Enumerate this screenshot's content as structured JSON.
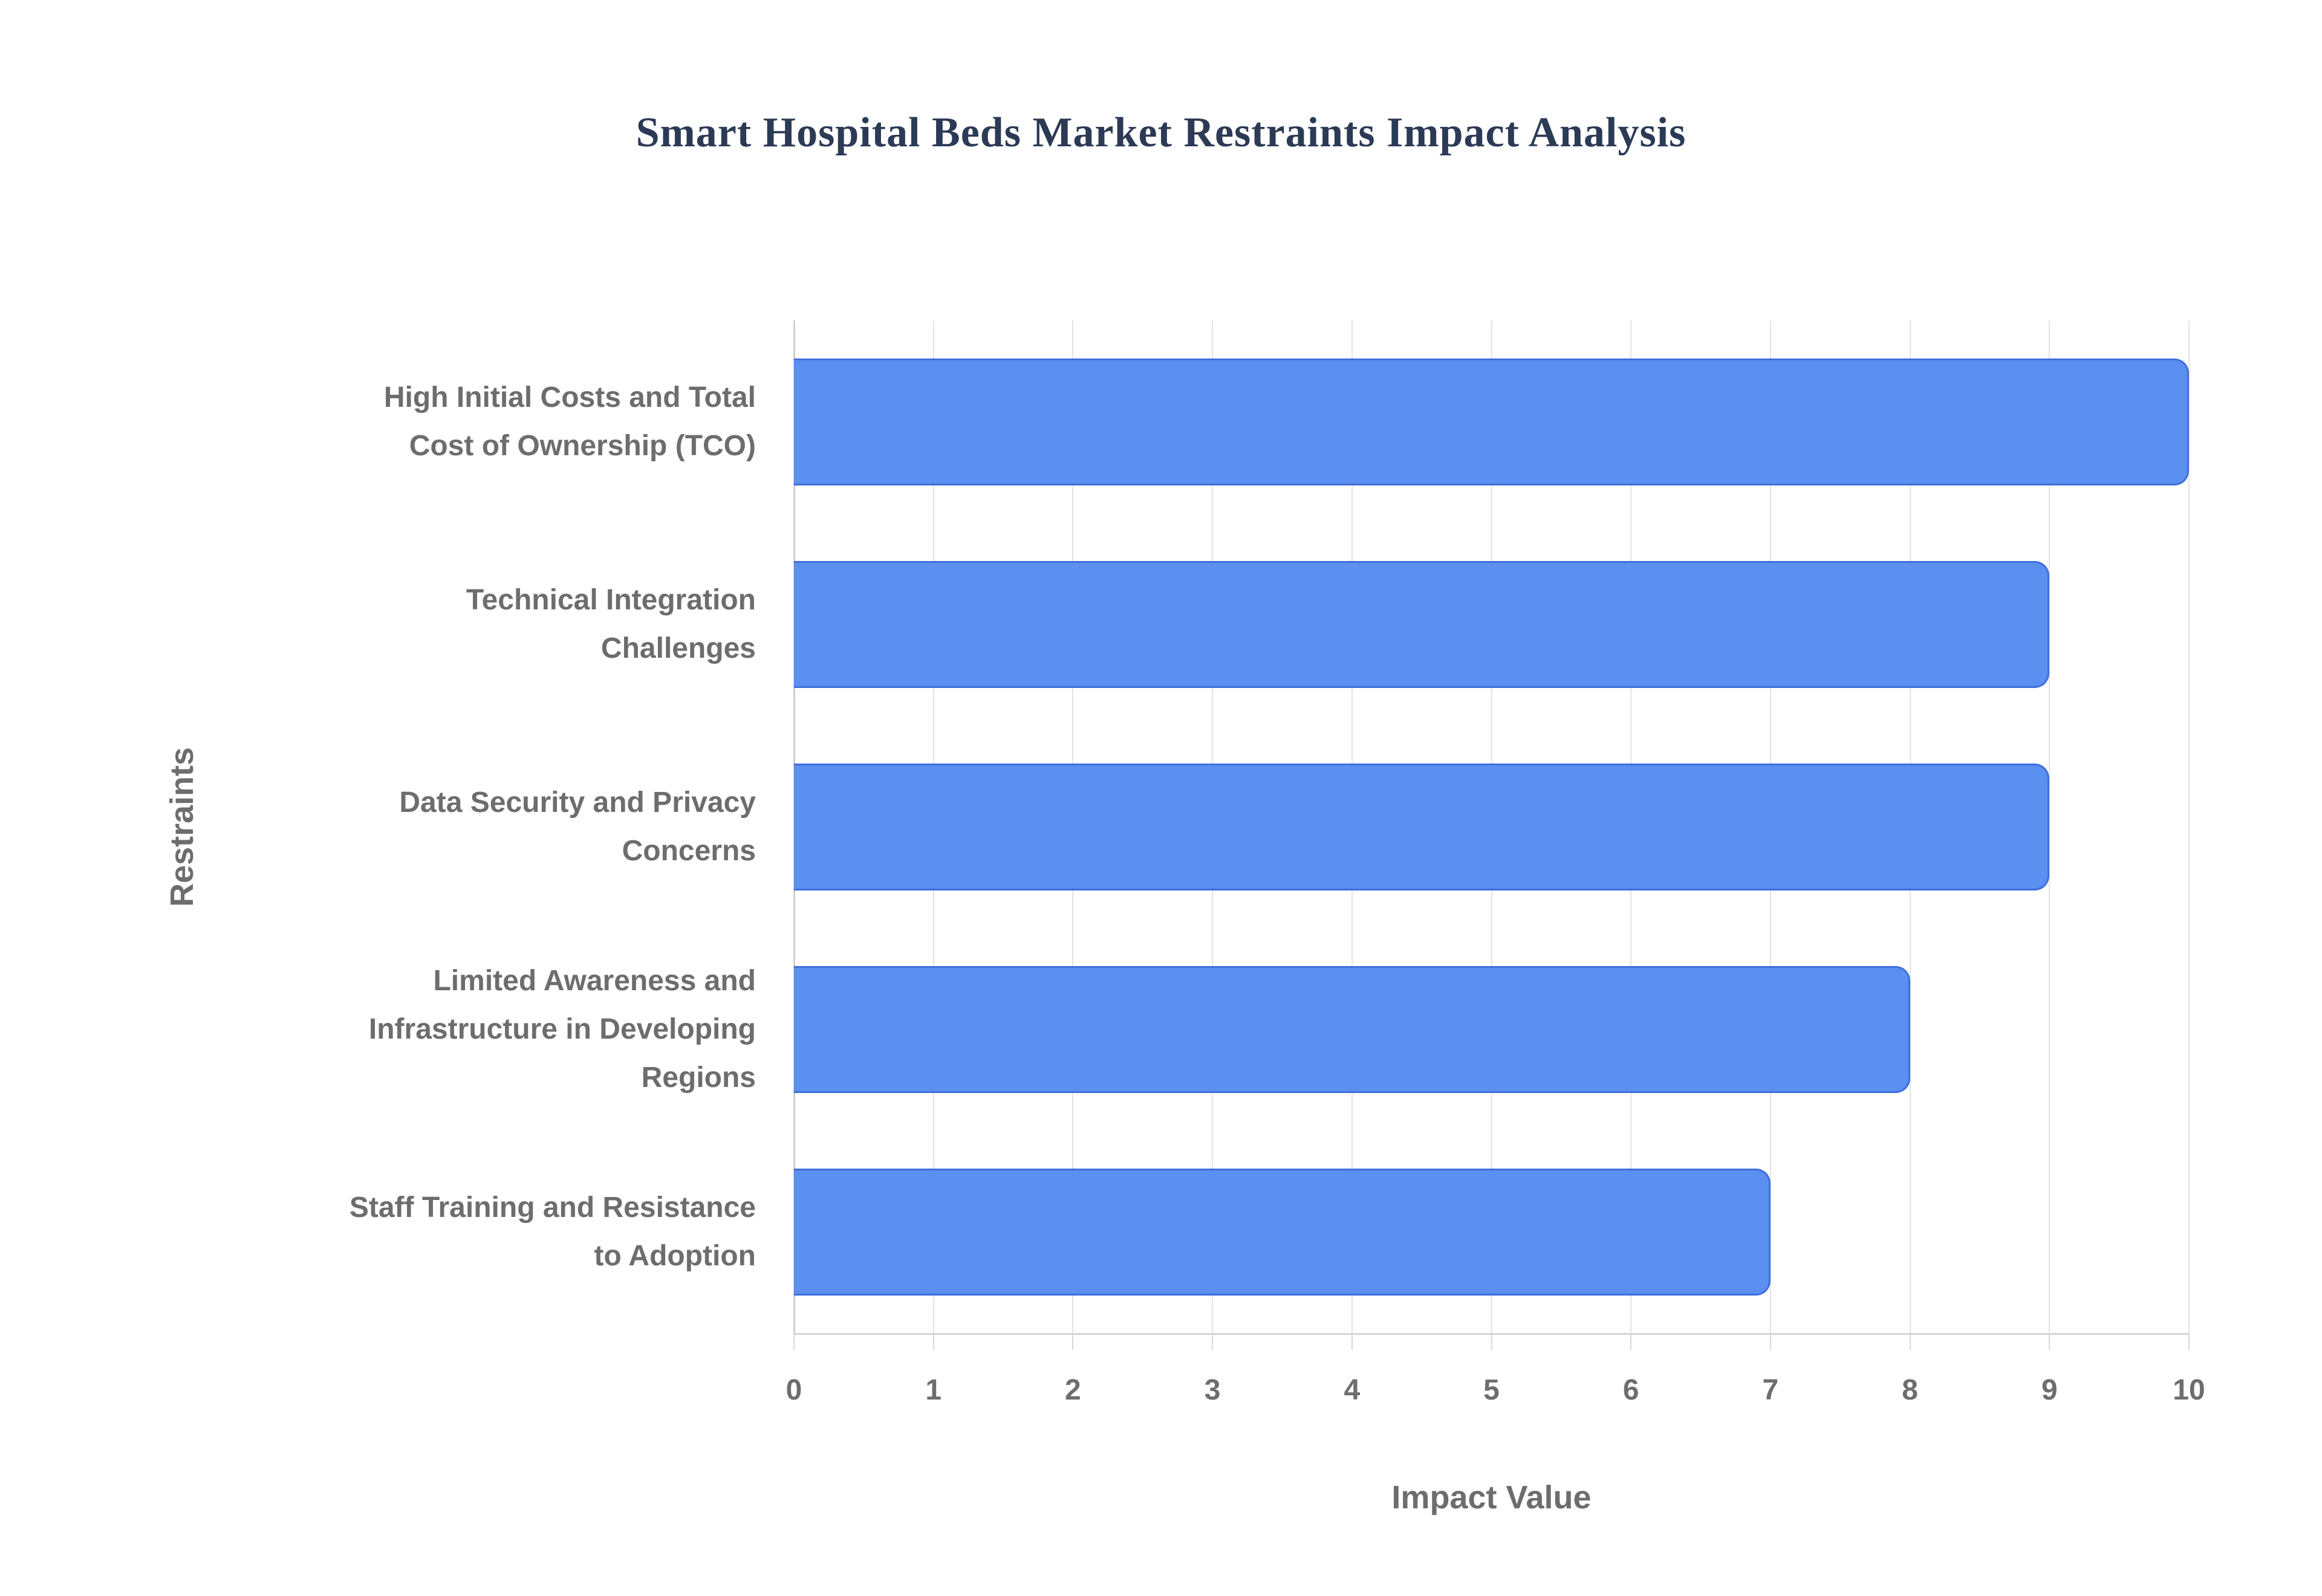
{
  "title": "Smart Hospital Beds Market Restraints Impact Analysis",
  "chart_data": {
    "type": "bar",
    "orientation": "horizontal",
    "title": "Smart Hospital Beds Market Restraints Impact Analysis",
    "categories": [
      "High Initial Costs and Total Cost of Ownership (TCO)",
      "Technical Integration Challenges",
      "Data Security and Privacy Concerns",
      "Limited Awareness and Infrastructure in Developing Regions",
      "Staff Training and Resistance to Adoption"
    ],
    "category_lines": [
      [
        "High Initial Costs and Total",
        "Cost of Ownership (TCO)"
      ],
      [
        "Technical Integration",
        "Challenges"
      ],
      [
        "Data Security and Privacy",
        "Concerns"
      ],
      [
        "Limited Awareness and",
        "Infrastructure in Developing",
        "Regions"
      ],
      [
        "Staff Training and Resistance",
        "to Adoption"
      ]
    ],
    "values": [
      10,
      9,
      9,
      8,
      7
    ],
    "xlabel": "Impact Value",
    "ylabel": "Restraints",
    "xlim": [
      0,
      10
    ],
    "xticks": [
      0,
      1,
      2,
      3,
      4,
      5,
      6,
      7,
      8,
      9,
      10
    ],
    "grid": "vertical",
    "legend": "none",
    "colors": {
      "bar_fill": "#5b8ff0",
      "bar_border": "#3f6fdd",
      "gridline": "#e4e4e4",
      "axis_line": "#cfcfcf",
      "tick_mark": "#d8d8d8",
      "label_text": "#6d6d6d",
      "title_text": "#2b3a55"
    }
  }
}
